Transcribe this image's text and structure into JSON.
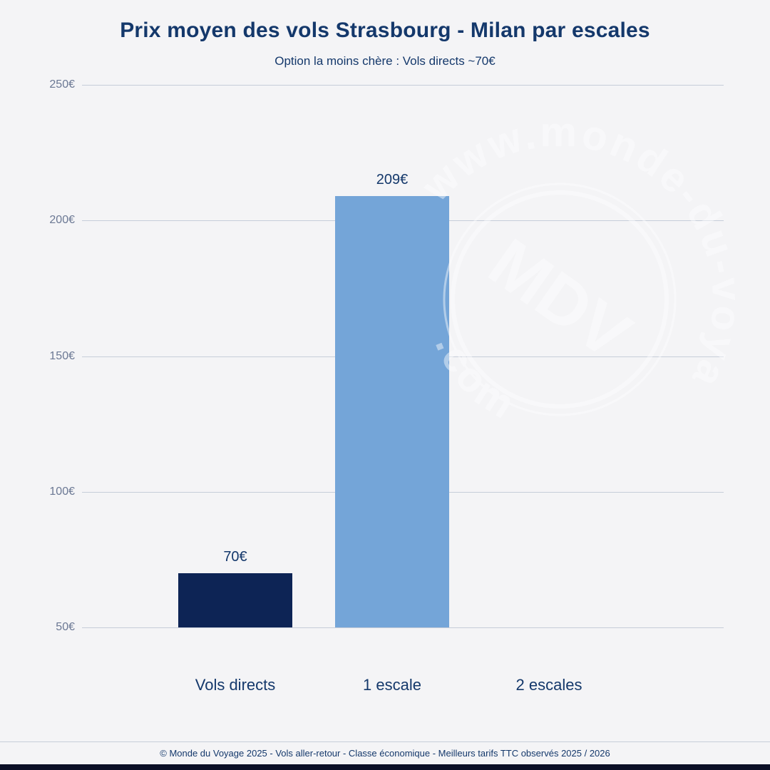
{
  "chart_data": {
    "type": "bar",
    "title": "Prix moyen des vols Strasbourg - Milan par escales",
    "subtitle": "Option la moins chère : Vols directs ~70€",
    "categories": [
      "Vols directs",
      "1 escale",
      "2 escales"
    ],
    "values": [
      70,
      209,
      null
    ],
    "value_labels": [
      "70€",
      "209€",
      ""
    ],
    "xlabel": "",
    "ylabel": "",
    "ylim": [
      50,
      250
    ],
    "yticks": [
      250,
      200,
      150,
      100,
      50
    ],
    "ytick_labels": [
      "250€",
      "200€",
      "150€",
      "100€",
      "50€"
    ],
    "bar_colors": [
      "#0d2455",
      "#74a5d8",
      "#74a5d8"
    ],
    "grid": true,
    "legend": false
  },
  "watermark": {
    "circle_text_top": "www.monde-du-voyage",
    "circle_text_bottom": ".com",
    "center_text": "MDV"
  },
  "footer": {
    "text": "© Monde du Voyage 2025 - Vols aller-retour - Classe économique - Meilleurs tarifs TTC observés 2025 / 2026"
  },
  "colors": {
    "title": "#14386b",
    "background": "#f4f4f6",
    "gridline": "#c6cdd9",
    "bar_direct": "#0d2455",
    "bar_stop": "#74a5d8"
  }
}
